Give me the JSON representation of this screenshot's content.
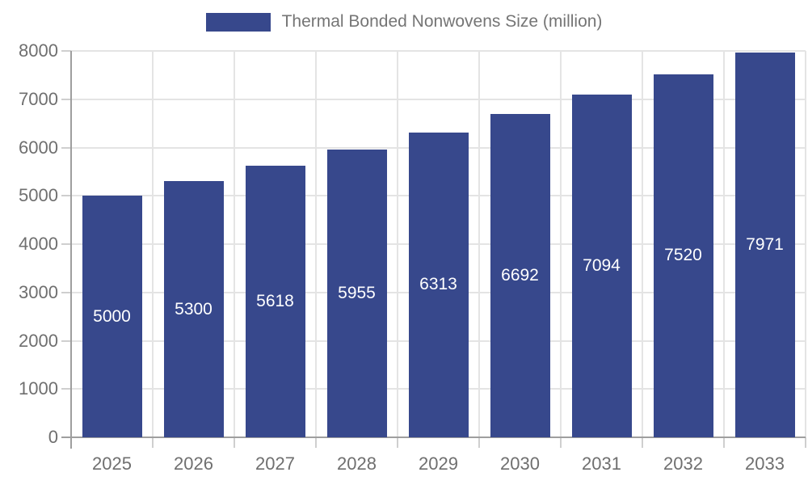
{
  "legend": {
    "label": "Thermal Bonded Nonwovens Size (million)"
  },
  "chart_data": {
    "type": "bar",
    "title": "Thermal Bonded Nonwovens Size (million)",
    "categories": [
      "2025",
      "2026",
      "2027",
      "2028",
      "2029",
      "2030",
      "2031",
      "2032",
      "2033"
    ],
    "values": [
      5000,
      5300,
      5618,
      5955,
      6313,
      6692,
      7094,
      7520,
      7971
    ],
    "value_labels": [
      "5000",
      "5300",
      "5618",
      "5955",
      "6313",
      "6692",
      "7094",
      "7520",
      "7971"
    ],
    "yticks": [
      "0",
      "1000",
      "2000",
      "3000",
      "4000",
      "5000",
      "6000",
      "7000",
      "8000"
    ],
    "ylim": [
      0,
      8000
    ],
    "ytick_step": 1000,
    "grid": true,
    "legend_position": "top-center",
    "bar_labels_position": "inside-center",
    "colors": {
      "bar": "#37488C",
      "value_text": "#ffffff",
      "axis_text": "#6f6f6f",
      "legend_text": "#757575",
      "grid": "#e4e4e4",
      "tick": "#cfcfcf",
      "axis_line": "#9e9e9e"
    }
  }
}
